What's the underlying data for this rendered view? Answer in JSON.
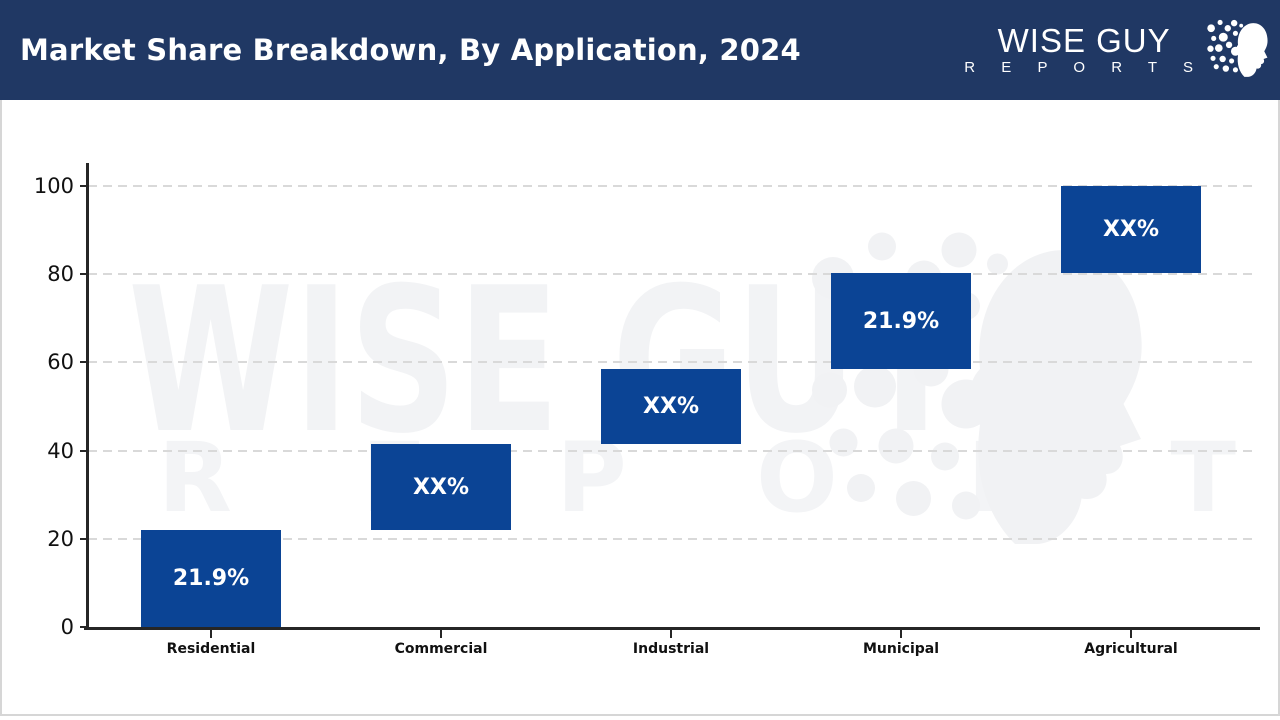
{
  "header": {
    "title": "Market Share Breakdown, By Application, 2024",
    "bg_color": "#203864",
    "logo": {
      "line1": "WISE GUY",
      "line2": "R E P O R T S",
      "icon": "head-of-dots"
    }
  },
  "watermark": {
    "line1": "WISE GUY",
    "line2": "R E P O R T S",
    "icon": "head-of-dots",
    "color": "#f2f3f5"
  },
  "chart_data": {
    "type": "bar",
    "subtype": "waterfall",
    "title": "Market Share Breakdown, By Application, 2024",
    "xlabel": "",
    "ylabel": "",
    "categories": [
      "Residential",
      "Commercial",
      "Industrial",
      "Municipal",
      "Agricultural"
    ],
    "segments": [
      {
        "category": "Residential",
        "start": 0,
        "end": 21.9,
        "value": 21.9,
        "label": "21.9%"
      },
      {
        "category": "Commercial",
        "start": 21.9,
        "end": 41.5,
        "value": 19.6,
        "label": "XX%"
      },
      {
        "category": "Industrial",
        "start": 41.5,
        "end": 58.4,
        "value": 16.9,
        "label": "XX%"
      },
      {
        "category": "Municipal",
        "start": 58.4,
        "end": 80.3,
        "value": 21.9,
        "label": "21.9%"
      },
      {
        "category": "Agricultural",
        "start": 80.3,
        "end": 100,
        "value": 19.7,
        "label": "XX%"
      }
    ],
    "yticks": [
      0,
      20,
      40,
      60,
      80,
      100
    ],
    "ylim": [
      0,
      105
    ],
    "grid": "horizontal dashed",
    "legend": "none",
    "bar_color": "#0b4495",
    "bar_label_color": "#ffffff",
    "grid_color": "#d9d9d9",
    "axis_color": "#262626"
  }
}
